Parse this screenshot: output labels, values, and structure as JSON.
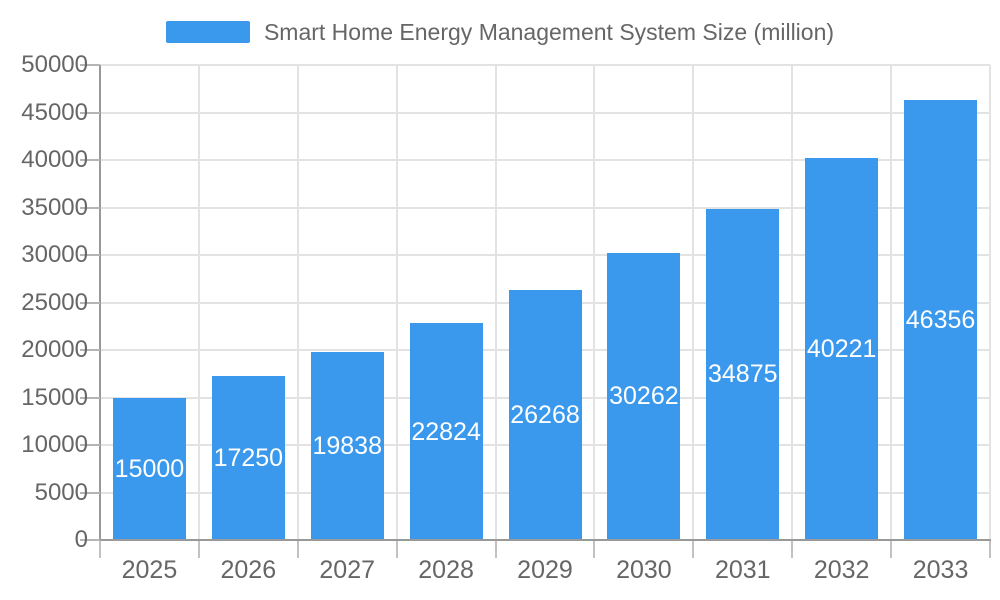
{
  "chart_data": {
    "type": "bar",
    "title": "Smart Home Energy Management System Size (million)",
    "categories": [
      "2025",
      "2026",
      "2027",
      "2028",
      "2029",
      "2030",
      "2031",
      "2032",
      "2033"
    ],
    "series": [
      {
        "name": "Smart Home Energy Management System Size (million)",
        "values": [
          15000,
          17250,
          19838,
          22824,
          26268,
          30262,
          34875,
          40221,
          46356
        ]
      }
    ],
    "xlabel": "",
    "ylabel": "",
    "ylim": [
      0,
      50000
    ],
    "y_ticks": [
      0,
      5000,
      10000,
      15000,
      20000,
      25000,
      30000,
      35000,
      40000,
      45000,
      50000
    ],
    "grid": true,
    "legend_position": "top-center",
    "value_label_position": "inside-middle"
  },
  "legend": {
    "label": "Smart Home Energy Management System Size (million)"
  },
  "colors": {
    "bar": "#3A99EC",
    "value_label_text": "#FFFFFF",
    "axis_text": "#666666",
    "axis_line": "#999999",
    "tick": "#BBBBBB",
    "gridline": "#E3E3E3",
    "background": "#FFFFFF"
  }
}
